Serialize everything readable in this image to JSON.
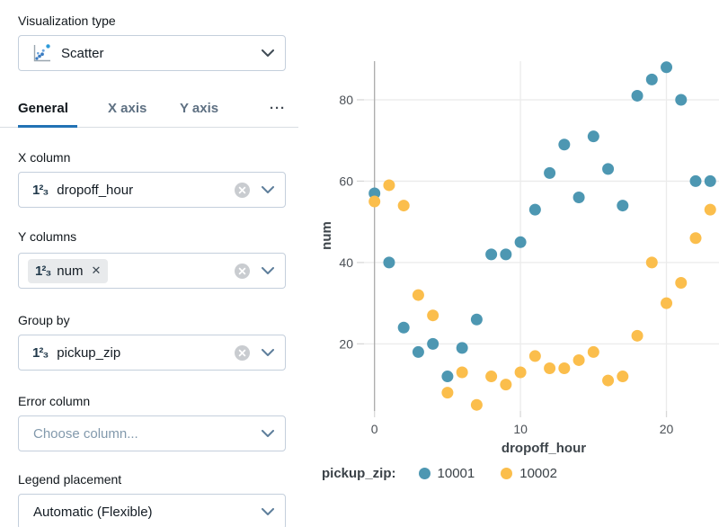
{
  "sidebar": {
    "viz_type": {
      "label": "Visualization type",
      "value": "Scatter"
    },
    "tabs": [
      {
        "label": "General",
        "active": true
      },
      {
        "label": "X axis",
        "active": false
      },
      {
        "label": "Y axis",
        "active": false
      },
      {
        "label": "···",
        "active": false
      }
    ],
    "x_column": {
      "label": "X column",
      "value": "dropoff_hour"
    },
    "y_columns": {
      "label": "Y columns",
      "chips": [
        {
          "value": "num"
        }
      ]
    },
    "group_by": {
      "label": "Group by",
      "value": "pickup_zip"
    },
    "error_column": {
      "label": "Error column",
      "placeholder": "Choose column..."
    },
    "legend_placement": {
      "label": "Legend placement",
      "value": "Automatic (Flexible)"
    }
  },
  "icons": {
    "number": "1²₃",
    "remove": "✕"
  },
  "colors": {
    "accent": "#2272b4",
    "series_blue": "#4d97b2",
    "series_yellow": "#fbbe4c"
  },
  "chart": {
    "legend_title": "pickup_zip:"
  },
  "chart_data": {
    "type": "scatter",
    "title": "",
    "xlabel": "dropoff_hour",
    "ylabel": "num",
    "x": [
      0,
      1,
      2,
      3,
      4,
      5,
      6,
      7,
      8,
      9,
      10,
      11,
      12,
      13,
      14,
      15,
      16,
      17,
      18,
      19,
      20,
      21,
      22,
      23
    ],
    "series": [
      {
        "name": "10001",
        "color": "#4d97b2",
        "values": [
          57,
          40,
          24,
          18,
          20,
          12,
          19,
          26,
          42,
          42,
          45,
          53,
          62,
          69,
          56,
          71,
          63,
          54,
          81,
          85,
          88,
          80,
          60,
          60
        ]
      },
      {
        "name": "10002",
        "color": "#fbbe4c",
        "values": [
          55,
          59,
          54,
          32,
          27,
          8,
          13,
          5,
          12,
          10,
          13,
          17,
          14,
          14,
          16,
          18,
          11,
          12,
          22,
          40,
          30,
          35,
          46,
          53
        ]
      }
    ],
    "x_ticks": [
      0,
      10,
      20
    ],
    "y_ticks": [
      20,
      40,
      60,
      80
    ],
    "xlim": [
      -0.72,
      23.6
    ],
    "ylim": [
      3.5,
      89.5
    ],
    "grid": true,
    "legend_position": "bottom"
  }
}
